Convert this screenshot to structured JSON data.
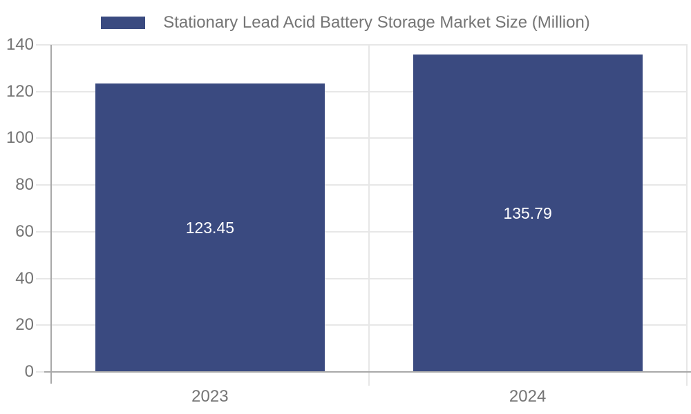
{
  "chart_data": {
    "type": "bar",
    "title": "",
    "legend": {
      "label": "Stationary Lead Acid Battery Storage Market Size (Million)",
      "position": "top"
    },
    "categories": [
      "2023",
      "2024"
    ],
    "series": [
      {
        "name": "Stationary Lead Acid Battery Storage Market Size (Million)",
        "values": [
          123.45,
          135.79
        ],
        "value_labels": [
          "123.45",
          "135.79"
        ]
      }
    ],
    "xlabel": "",
    "ylabel": "",
    "ylim": [
      0,
      140
    ],
    "y_ticks": [
      0,
      20,
      40,
      60,
      80,
      100,
      120,
      140
    ],
    "grid": true,
    "colors": {
      "bar": "#3A4A80",
      "gridline": "#E7E7E7",
      "axis": "#A9A9A9",
      "tick_text": "#757575",
      "legend_text": "#757575",
      "value_label_text": "#FFFFFF",
      "background": "#FFFFFF"
    }
  }
}
